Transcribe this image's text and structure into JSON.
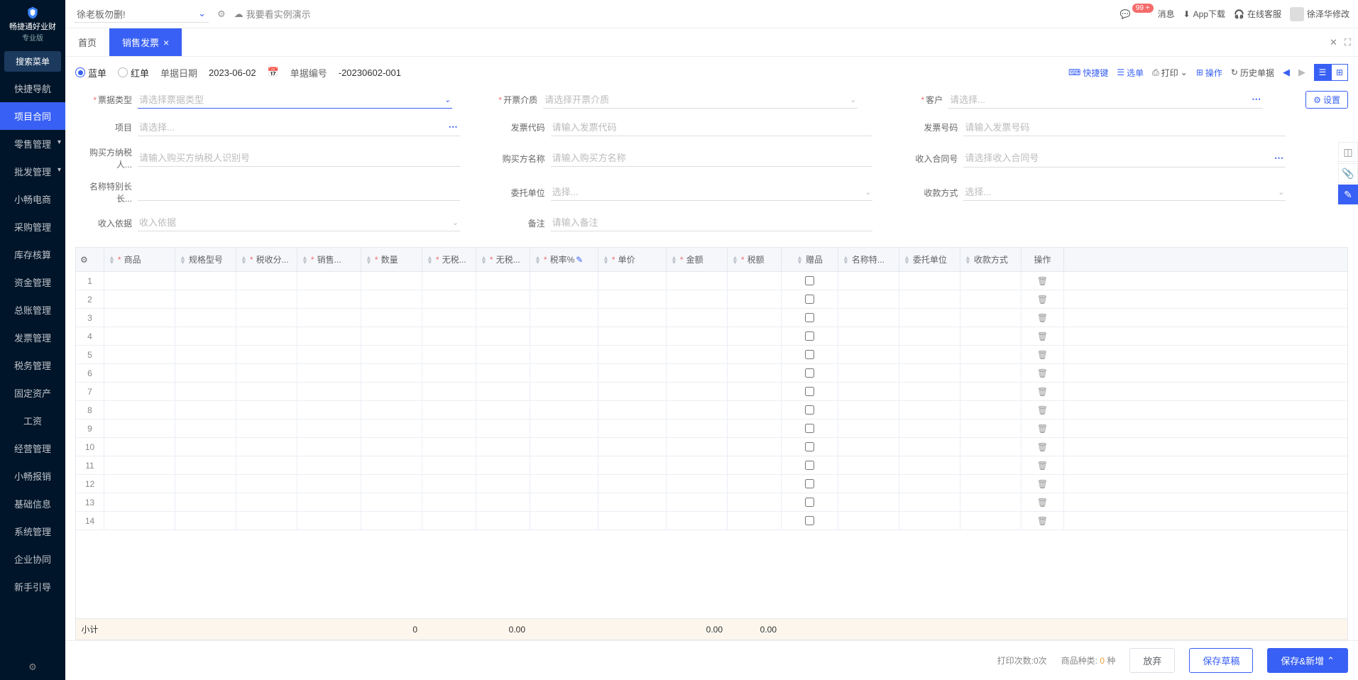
{
  "brand": {
    "name": "畅捷通好业财",
    "edition": "专业版"
  },
  "sidebar": {
    "search": "搜索菜单",
    "items": [
      {
        "label": "快捷导航",
        "active": false,
        "expandable": false
      },
      {
        "label": "项目合同",
        "active": true,
        "expandable": false
      },
      {
        "label": "零售管理",
        "active": false,
        "expandable": true
      },
      {
        "label": "批发管理",
        "active": false,
        "expandable": true
      },
      {
        "label": "小畅电商",
        "active": false,
        "expandable": false
      },
      {
        "label": "采购管理",
        "active": false,
        "expandable": false
      },
      {
        "label": "库存核算",
        "active": false,
        "expandable": false
      },
      {
        "label": "资金管理",
        "active": false,
        "expandable": false
      },
      {
        "label": "总账管理",
        "active": false,
        "expandable": false
      },
      {
        "label": "发票管理",
        "active": false,
        "expandable": false
      },
      {
        "label": "税务管理",
        "active": false,
        "expandable": false
      },
      {
        "label": "固定资产",
        "active": false,
        "expandable": false
      },
      {
        "label": "工资",
        "active": false,
        "expandable": false
      },
      {
        "label": "经营管理",
        "active": false,
        "expandable": false
      },
      {
        "label": "小畅报销",
        "active": false,
        "expandable": false
      },
      {
        "label": "基础信息",
        "active": false,
        "expandable": false
      },
      {
        "label": "系统管理",
        "active": false,
        "expandable": false
      },
      {
        "label": "企业协同",
        "active": false,
        "expandable": false
      },
      {
        "label": "新手引导",
        "active": false,
        "expandable": false
      }
    ]
  },
  "topbar": {
    "company": "徐老板勿删!",
    "demo": "我要看实例演示",
    "msg_badge": "99 +",
    "msg": "消息",
    "download": "App下载",
    "service": "在线客服",
    "user": "徐泽华修改"
  },
  "tabs": {
    "home": "首页",
    "current": "销售发票"
  },
  "toolbar": {
    "radio_blue": "蓝单",
    "radio_red": "红单",
    "date_label": "单据日期",
    "date_value": "2023-06-02",
    "code_label": "单据编号",
    "code_value": "-20230602-001",
    "shortcut": "快捷键",
    "select": "选单",
    "print": "打印",
    "operate": "操作",
    "history": "历史单据",
    "settings": "设置"
  },
  "form": {
    "r1": {
      "f1": {
        "label": "票据类型",
        "placeholder": "请选择票据类型",
        "required": true
      },
      "f2": {
        "label": "开票介质",
        "placeholder": "请选择开票介质",
        "required": true
      },
      "f3": {
        "label": "客户",
        "placeholder": "请选择...",
        "required": true
      }
    },
    "r2": {
      "f1": {
        "label": "项目",
        "placeholder": "请选择...",
        "required": false
      },
      "f2": {
        "label": "发票代码",
        "placeholder": "请输入发票代码",
        "required": false
      },
      "f3": {
        "label": "发票号码",
        "placeholder": "请输入发票号码",
        "required": false
      }
    },
    "r3": {
      "f1": {
        "label": "购买方纳税人...",
        "placeholder": "请输入购买方纳税人识别号",
        "required": false
      },
      "f2": {
        "label": "购买方名称",
        "placeholder": "请输入购买方名称",
        "required": false
      },
      "f3": {
        "label": "收入合同号",
        "placeholder": "请选择收入合同号",
        "required": false
      }
    },
    "r4": {
      "f1": {
        "label": "名称特别长长...",
        "placeholder": "",
        "required": false
      },
      "f2": {
        "label": "委托单位",
        "placeholder": "选择...",
        "required": false
      },
      "f3": {
        "label": "收款方式",
        "placeholder": "选择...",
        "required": false
      }
    },
    "r5": {
      "f1": {
        "label": "收入依据",
        "placeholder": "收入依据",
        "required": false
      },
      "f2": {
        "label": "备注",
        "placeholder": "请输入备注",
        "required": false
      }
    }
  },
  "table": {
    "columns": [
      {
        "key": "gear",
        "label": ""
      },
      {
        "key": "product",
        "label": "商品",
        "required": true
      },
      {
        "key": "spec",
        "label": "规格型号"
      },
      {
        "key": "taxcat",
        "label": "税收分...",
        "required": true
      },
      {
        "key": "sale",
        "label": "销售...",
        "required": true
      },
      {
        "key": "qty",
        "label": "数量",
        "required": true
      },
      {
        "key": "notax1",
        "label": "无税...",
        "required": true
      },
      {
        "key": "notax2",
        "label": "无税...",
        "required": true
      },
      {
        "key": "rate",
        "label": "税率%",
        "required": true,
        "editable": true
      },
      {
        "key": "price",
        "label": "单价",
        "required": true
      },
      {
        "key": "amount",
        "label": "金额",
        "required": true
      },
      {
        "key": "tax",
        "label": "税额",
        "required": true
      },
      {
        "key": "gift",
        "label": "赠品"
      },
      {
        "key": "namelong",
        "label": "名称特..."
      },
      {
        "key": "consign",
        "label": "委托单位"
      },
      {
        "key": "paymode",
        "label": "收款方式"
      },
      {
        "key": "action",
        "label": "操作"
      }
    ],
    "row_count": 14,
    "subtotal": {
      "label": "小计",
      "qty": "0",
      "notax2": "0.00",
      "amount": "0.00",
      "tax": "0.00"
    }
  },
  "footer": {
    "print_count": "打印次数:0次",
    "sku_label": "商品种类:",
    "sku_count": "0",
    "sku_unit": "种",
    "discard": "放弃",
    "draft": "保存草稿",
    "save": "保存&新增"
  },
  "colors": {
    "primary": "#3860f4",
    "sidebar_bg": "#001529",
    "danger": "#f56c6c",
    "warning": "#e6a23c",
    "subtotal_bg": "#fdf6ec"
  }
}
